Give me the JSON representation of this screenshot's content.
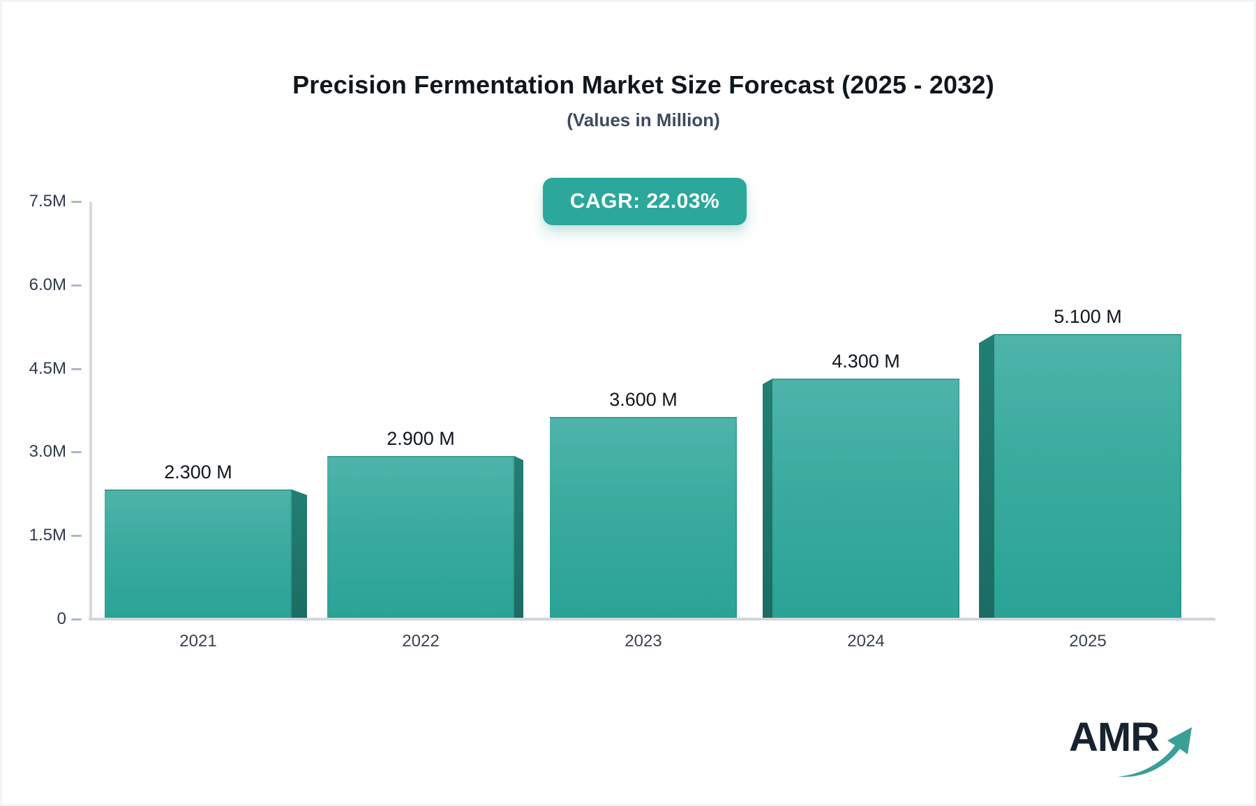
{
  "chart": {
    "title": "Precision Fermentation Market Size Forecast (2025 - 2032)",
    "subtitle": "(Values in Million)",
    "cagr_badge": "CAGR: 22.03%"
  },
  "chart_data": {
    "type": "bar",
    "title": "Precision Fermentation Market Size Forecast (2025 - 2032)",
    "subtitle": "(Values in Million)",
    "unit": "Million",
    "cagr_percent": "22.03%",
    "categories": [
      "2021",
      "2022",
      "2023",
      "2024",
      "2025"
    ],
    "values": [
      2.3,
      2.9,
      3.6,
      4.3,
      5.1
    ],
    "value_labels": [
      "2.300 M",
      "2.900 M",
      "3.600 M",
      "4.300 M",
      "5.100 M"
    ],
    "xlabel": "",
    "ylabel": "",
    "ylim": [
      0,
      7.5
    ],
    "yticks": [
      {
        "value": 0.0,
        "label": "0"
      },
      {
        "value": 1.5,
        "label": "1.5M"
      },
      {
        "value": 3.0,
        "label": "3.0M"
      },
      {
        "value": 4.5,
        "label": "4.5M"
      },
      {
        "value": 6.0,
        "label": "6.0M"
      },
      {
        "value": 7.5,
        "label": "7.5M"
      }
    ],
    "grid": false,
    "legend": false,
    "bar_style": "3d",
    "colors": {
      "bar_face_top": "#4FB4AB",
      "bar_face_bottom": "#2AA396",
      "bar_side": "#1E786D",
      "badge": "#2BA79B",
      "axis_line": "#D4D8DC",
      "title_text": "#10161D",
      "subtitle_text": "#3D4A5F",
      "tick_text": "#2E3A4D"
    }
  },
  "branding": {
    "logo_text": "AMR",
    "logo_color": "#16222E",
    "arrow_icon": "growth-arrow-icon",
    "arrow_color": "#3B9E97"
  }
}
